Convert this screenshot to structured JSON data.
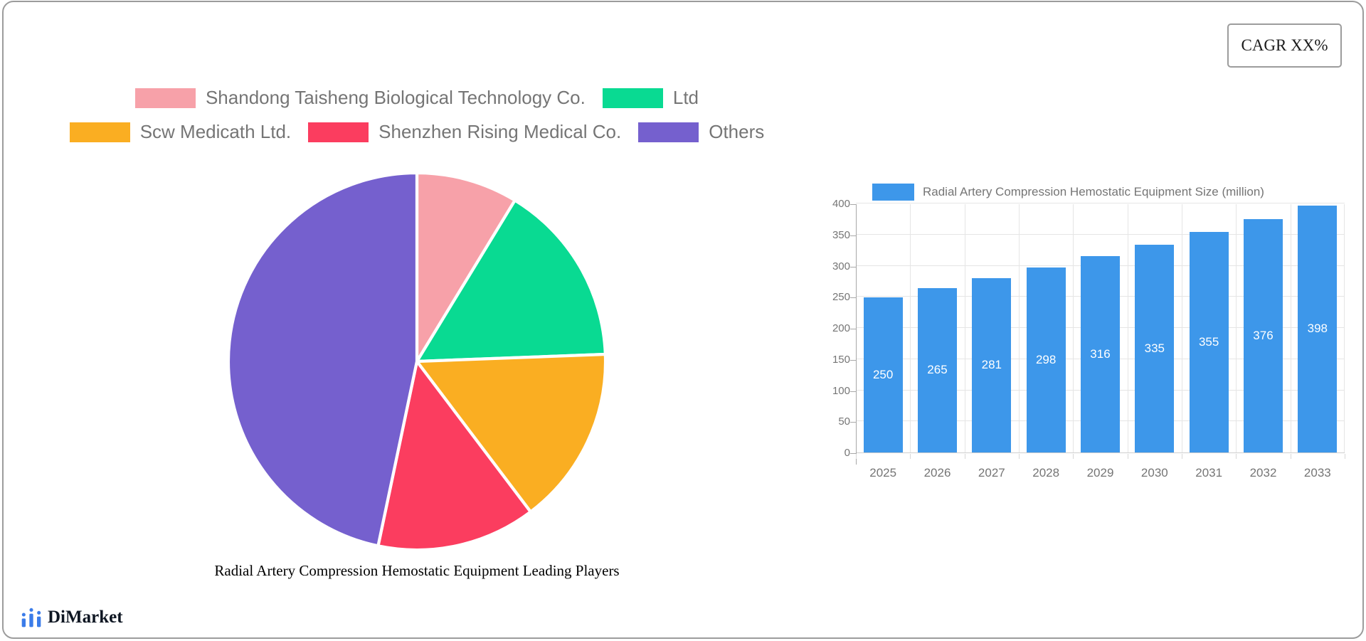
{
  "badge": {
    "cagr_label": "CAGR XX%"
  },
  "footer": {
    "brand": "DiMarket",
    "logo_blue": "#3B7CE9"
  },
  "chart_data": [
    {
      "type": "pie",
      "title": "Radial Artery Compression Hemostatic Equipment Leading Players",
      "labels": [
        "Shandong Taisheng Biological Technology Co.",
        "Ltd",
        "Scw Medicath Ltd.",
        "Shenzhen Rising Medical Co.",
        "Others"
      ],
      "values": [
        8.7,
        15.7,
        15.3,
        13.6,
        46.7
      ],
      "colors": [
        "#F7A1A9",
        "#09DA92",
        "#FAAE22",
        "#FB3D5F",
        "#7560CE"
      ],
      "start_angle_deg": -90,
      "direction": "clockwise",
      "legend_position": "top",
      "slice_border_color": "#ffffff"
    },
    {
      "type": "bar",
      "series_label": "Radial Artery Compression Hemostatic Equipment Size (million)",
      "categories": [
        "2025",
        "2026",
        "2027",
        "2028",
        "2029",
        "2030",
        "2031",
        "2032",
        "2033"
      ],
      "values": [
        250,
        265,
        281,
        298,
        316,
        335,
        355,
        376,
        398
      ],
      "ylim": [
        0,
        400
      ],
      "y_ticks": [
        0,
        50,
        100,
        150,
        200,
        250,
        300,
        350,
        400
      ],
      "grid": true,
      "bar_color": "#3D97EA",
      "value_label_color": "#ffffff",
      "legend_position": "top"
    }
  ]
}
